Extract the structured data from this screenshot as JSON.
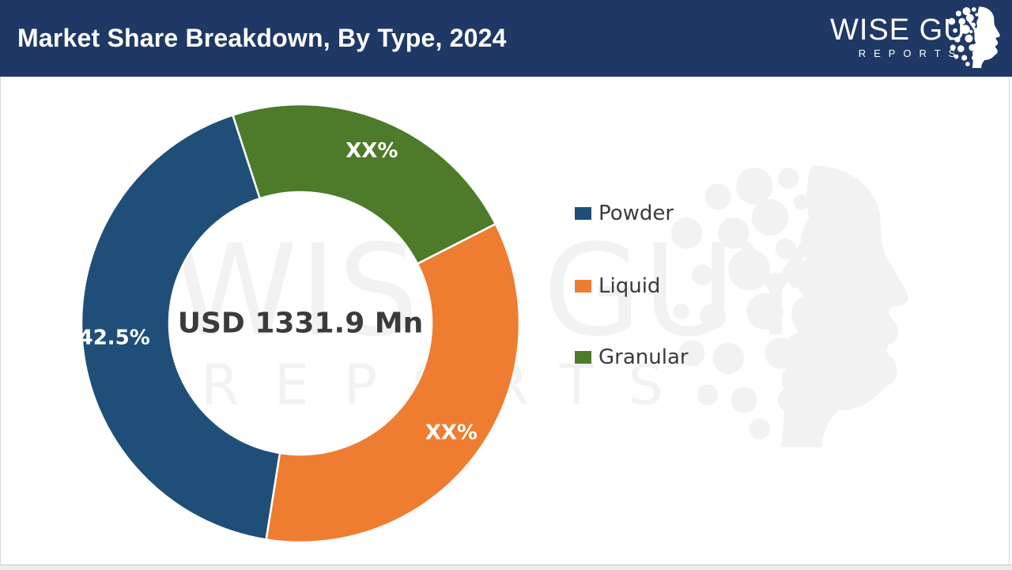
{
  "header": {
    "title": "Market Share Breakdown, By Type, 2024",
    "bg_color": "#1f3865"
  },
  "logo": {
    "line1": "WISE GUY",
    "line2": "REPORTS"
  },
  "watermark": {
    "line1": "WISE GUY",
    "line2": "REPORTS",
    "color": "#f2f2f2"
  },
  "chart_data": {
    "type": "pie",
    "variant": "donut",
    "center_label": "USD 1331.9 Mn",
    "start_angle_deg": 108,
    "direction": "counterclockwise",
    "legend_position": "right",
    "segments": [
      {
        "label": "Powder",
        "value_pct": 42.5,
        "display_pct": "42.5%",
        "color": "#1f4f78"
      },
      {
        "label": "Liquid",
        "value_pct": 35.0,
        "display_pct": "XX%",
        "color": "#ee7d32"
      },
      {
        "label": "Granular",
        "value_pct": 22.5,
        "display_pct": "XX%",
        "color": "#4d7b2a"
      }
    ]
  },
  "colors": {
    "legend_text": "#3a3a3a",
    "center_text": "#3b3b3b"
  }
}
